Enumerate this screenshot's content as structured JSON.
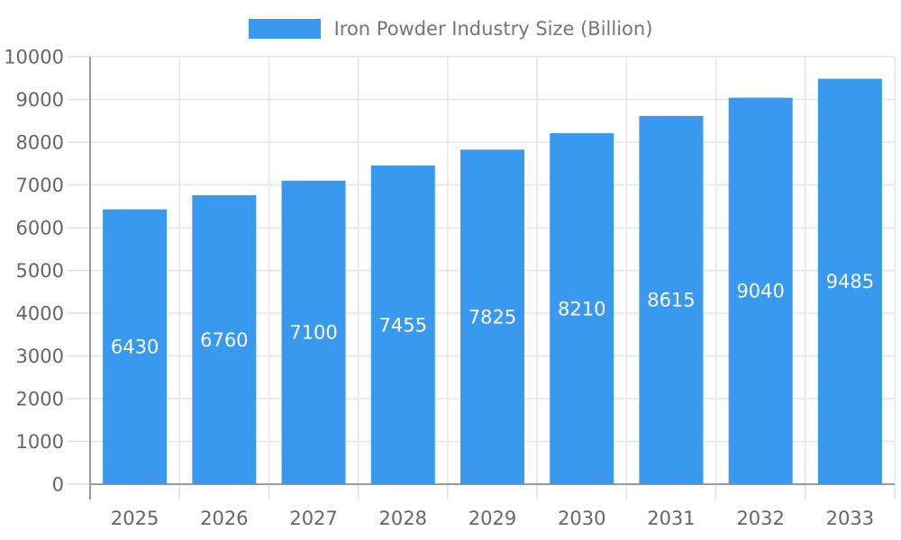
{
  "chart_data": {
    "type": "bar",
    "title": "Iron Powder Industry Size (Billion)",
    "categories": [
      "2025",
      "2026",
      "2027",
      "2028",
      "2029",
      "2030",
      "2031",
      "2032",
      "2033"
    ],
    "series": [
      {
        "name": "Iron Powder Industry Size (Billion)",
        "values": [
          6430,
          6760,
          7100,
          7455,
          7825,
          8210,
          8615,
          9040,
          9485
        ]
      }
    ],
    "xlabel": "",
    "ylabel": "",
    "ylim": [
      0,
      10000
    ],
    "y_tick_step": 1000,
    "grid": true,
    "legend_position": "top-center",
    "value_labels": "inside-center-white",
    "colors": {
      "bar": "#3899EE",
      "bar_label": "#FFFFFF",
      "axis": "#999999",
      "grid": "#E6E6E6",
      "tick_line": "#E0E0E0",
      "tick_text": "#666666",
      "legend_text": "#757575",
      "background": "#FFFFFF"
    }
  }
}
